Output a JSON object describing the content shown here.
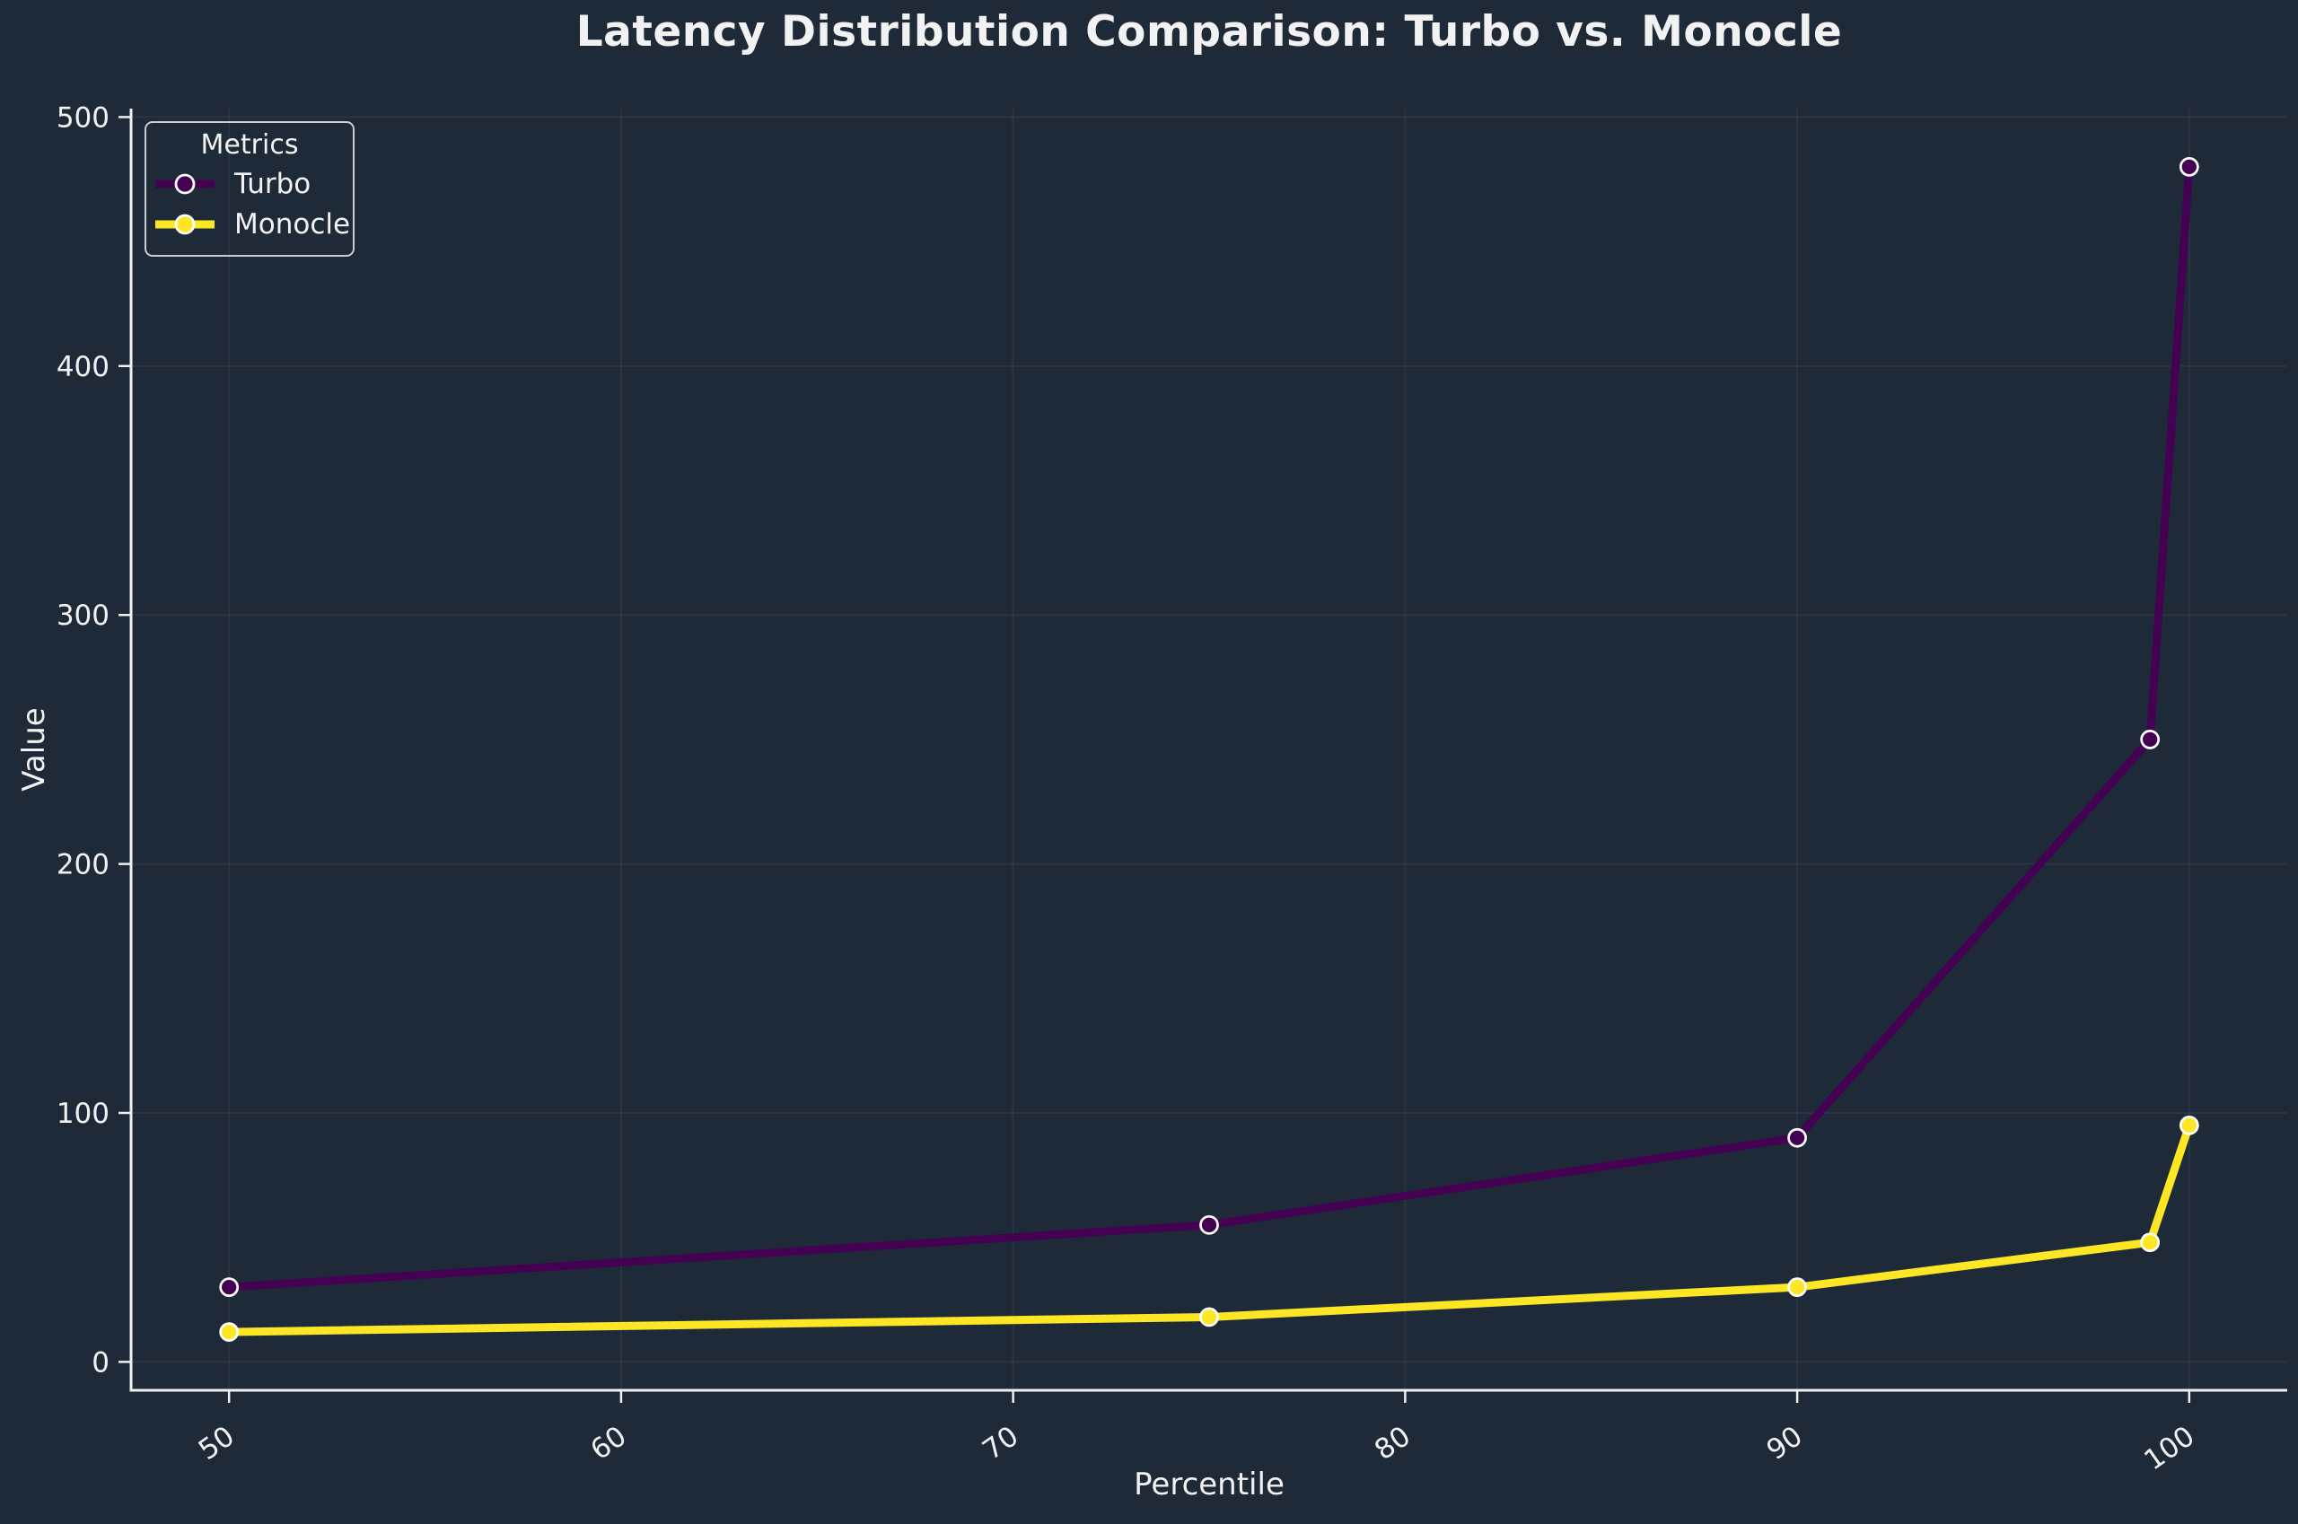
{
  "chart_data": {
    "type": "line",
    "title": "Latency Distribution Comparison: Turbo vs. Monocle",
    "xlabel": "Percentile",
    "ylabel": "Value",
    "x": [
      50,
      75,
      90,
      99,
      100
    ],
    "series": [
      {
        "name": "Turbo",
        "values": [
          30,
          55,
          90,
          250,
          480
        ],
        "color": "#440154",
        "marker": "circle"
      },
      {
        "name": "Monocle",
        "values": [
          12,
          18,
          30,
          48,
          95
        ],
        "color": "#fde725",
        "marker": "circle"
      }
    ],
    "xticks": [
      50,
      60,
      70,
      80,
      90,
      100
    ],
    "yticks": [
      0,
      100,
      200,
      300,
      400,
      500
    ],
    "xlim": [
      47.5,
      102.5
    ],
    "ylim": [
      -11.4,
      503.4
    ],
    "xtick_rotation_deg": -35,
    "grid": true,
    "legend": {
      "title": "Metrics",
      "position": "upper-left"
    },
    "colors": {
      "background": "#1f2a38",
      "text": "#f2f2f2",
      "spine": "#eef0f2",
      "grid": "rgba(255,255,255,0.055)",
      "marker_edge": "#ffffff",
      "legend_border": "#c9ced6"
    }
  }
}
